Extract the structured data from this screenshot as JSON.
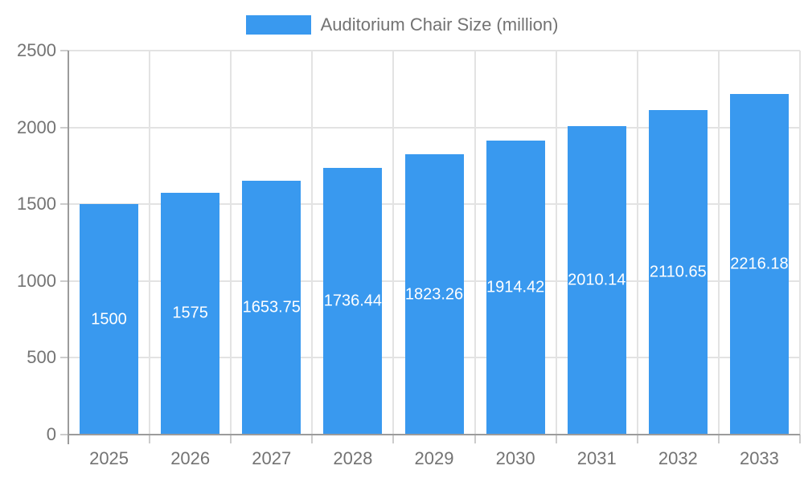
{
  "legend": {
    "label": "Auditorium Chair Size (million)",
    "swatch_color": "#3999EF"
  },
  "chart_data": {
    "type": "bar",
    "title": "Auditorium Chair Size (million)",
    "categories": [
      "2025",
      "2026",
      "2027",
      "2028",
      "2029",
      "2030",
      "2031",
      "2032",
      "2033"
    ],
    "series": [
      {
        "name": "Auditorium Chair Size (million)",
        "values": [
          1500,
          1575,
          1653.75,
          1736.44,
          1823.26,
          1914.42,
          2010.14,
          2110.65,
          2216.18
        ]
      }
    ],
    "bar_value_labels": [
      "1500",
      "1575",
      "1653.75",
      "1736.44",
      "1823.26",
      "1914.42",
      "2010.14",
      "2110.65",
      "2216.18"
    ],
    "yticks": [
      "0",
      "500",
      "1000",
      "1500",
      "2000",
      "2500"
    ],
    "ytick_values": [
      0,
      500,
      1000,
      1500,
      2000,
      2500
    ],
    "ylim": [
      0,
      2500
    ],
    "grid": true,
    "legend_position": "top",
    "colors": {
      "bar": "#3999EF",
      "axis_text": "#737373",
      "grid_line": "#e3e3e3",
      "tick_line": "#cccccc",
      "axis_line": "#9b9b9b",
      "bar_label_text": "#ffffff",
      "background": "#ffffff"
    }
  }
}
